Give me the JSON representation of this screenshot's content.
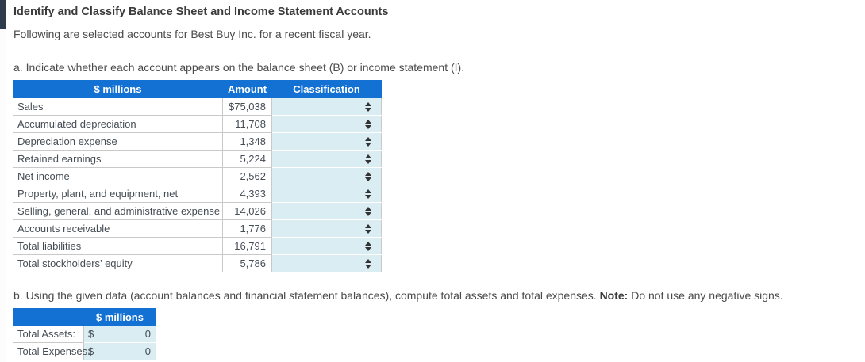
{
  "page": {
    "title": "Identify and Classify Balance Sheet and Income Statement Accounts",
    "intro": "Following are selected accounts for Best Buy Inc. for a recent fiscal year."
  },
  "part_a": {
    "instruction": "a. Indicate whether each account appears on the balance sheet (B) or income statement (I).",
    "table": {
      "headers": [
        "$ millions",
        "Amount",
        "Classification"
      ],
      "rows": [
        {
          "account": "Sales",
          "amount": "$75,038"
        },
        {
          "account": "Accumulated depreciation",
          "amount": "11,708"
        },
        {
          "account": "Depreciation expense",
          "amount": "1,348"
        },
        {
          "account": "Retained earnings",
          "amount": "5,224"
        },
        {
          "account": "Net income",
          "amount": "2,562"
        },
        {
          "account": "Property, plant, and equipment, net",
          "amount": "4,393"
        },
        {
          "account": "Selling, general, and administrative expense",
          "amount": "14,026"
        },
        {
          "account": "Accounts receivable",
          "amount": "1,776"
        },
        {
          "account": "Total liabilities",
          "amount": "16,791"
        },
        {
          "account": "Total stockholders’ equity",
          "amount": "5,786"
        }
      ],
      "dropdown_value": ""
    }
  },
  "part_b": {
    "instruction_main": "b. Using the given data (account balances and financial statement balances), compute total assets and total expenses. ",
    "note_label": "Note:",
    "instruction_note": " Do not use any negative signs.",
    "table": {
      "header": "$ millions",
      "rows": [
        {
          "label": "Total Assets:",
          "currency": "$",
          "value": "0"
        },
        {
          "label": "Total Expenses:",
          "currency": "$",
          "value": "0"
        }
      ]
    }
  },
  "colors": {
    "header_blue": "#1371d3",
    "input_blue": "#d9edf2",
    "scroll_thumb": "#2d3b4a"
  },
  "icons": {
    "classification_dropdown": "up-down-arrows-icon"
  }
}
